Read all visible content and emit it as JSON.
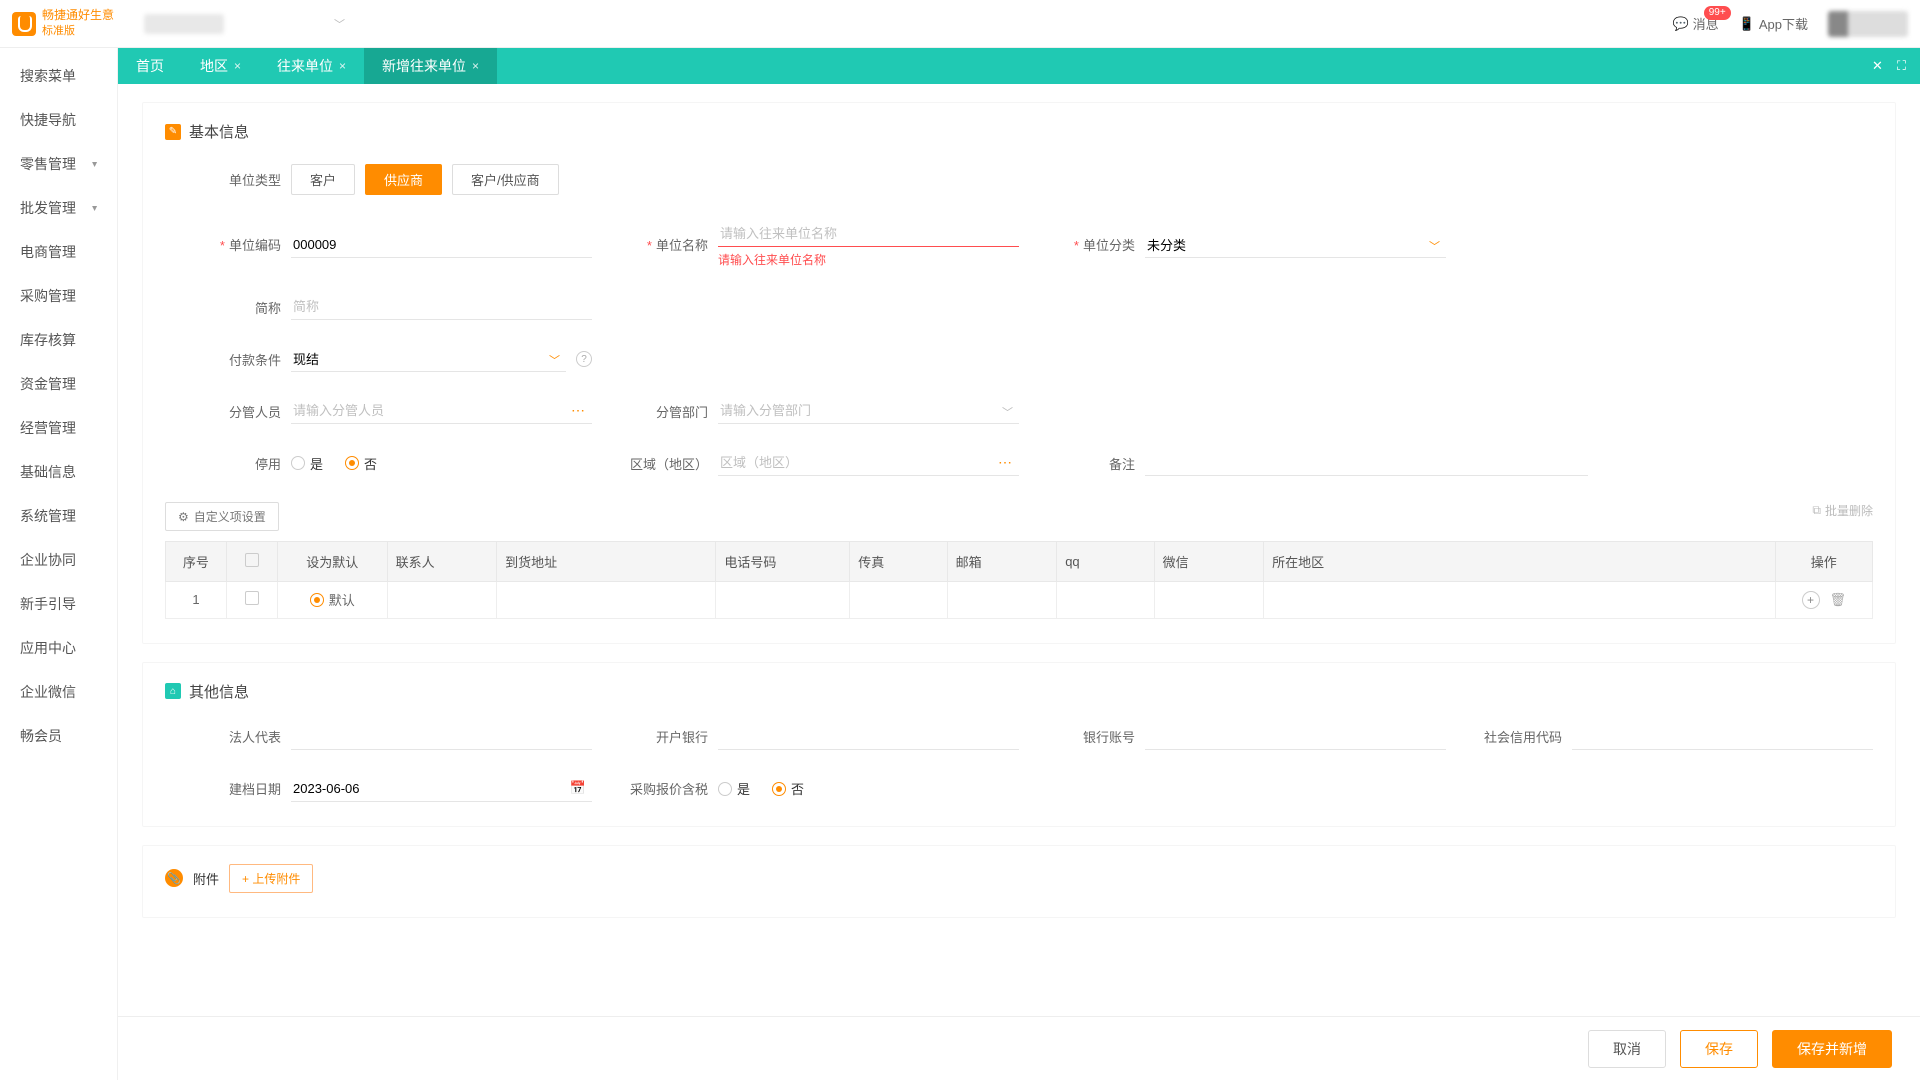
{
  "header": {
    "logo_text": "畅捷通好生意",
    "logo_sub": "标准版",
    "messages_label": "消息",
    "messages_badge": "99+",
    "app_download_label": "App下载"
  },
  "sidebar": {
    "items": [
      {
        "label": "搜索菜单",
        "caret": false
      },
      {
        "label": "快捷导航",
        "caret": false
      },
      {
        "label": "零售管理",
        "caret": true
      },
      {
        "label": "批发管理",
        "caret": true
      },
      {
        "label": "电商管理",
        "caret": false
      },
      {
        "label": "采购管理",
        "caret": false
      },
      {
        "label": "库存核算",
        "caret": false
      },
      {
        "label": "资金管理",
        "caret": false
      },
      {
        "label": "经营管理",
        "caret": false
      },
      {
        "label": "基础信息",
        "caret": false
      },
      {
        "label": "系统管理",
        "caret": false
      },
      {
        "label": "企业协同",
        "caret": false
      },
      {
        "label": "新手引导",
        "caret": false
      },
      {
        "label": "应用中心",
        "caret": false
      },
      {
        "label": "企业微信",
        "caret": false
      },
      {
        "label": "畅会员",
        "caret": false
      }
    ]
  },
  "tabs": [
    {
      "label": "首页",
      "closable": false,
      "active": false
    },
    {
      "label": "地区",
      "closable": true,
      "active": false
    },
    {
      "label": "往来单位",
      "closable": true,
      "active": false
    },
    {
      "label": "新增往来单位",
      "closable": true,
      "active": true
    }
  ],
  "section_basic": {
    "title": "基本信息",
    "unit_type_label": "单位类型",
    "unit_type_options": [
      "客户",
      "供应商",
      "客户/供应商"
    ],
    "unit_type_selected": 1,
    "unit_code_label": "单位编码",
    "unit_code_value": "000009",
    "unit_name_label": "单位名称",
    "unit_name_placeholder": "请输入往来单位名称",
    "unit_name_error": "请输入往来单位名称",
    "unit_category_label": "单位分类",
    "unit_category_value": "未分类",
    "abbr_label": "简称",
    "abbr_placeholder": "简称",
    "pay_terms_label": "付款条件",
    "pay_terms_value": "现结",
    "manager_label": "分管人员",
    "manager_placeholder": "请输入分管人员",
    "dept_label": "分管部门",
    "dept_placeholder": "请输入分管部门",
    "disabled_label": "停用",
    "disabled_yes": "是",
    "disabled_no": "否",
    "region_label": "区域（地区）",
    "region_placeholder": "区域（地区）",
    "remark_label": "备注",
    "custom_setting_label": "自定义项设置",
    "batch_delete_label": "批量删除"
  },
  "contact_table": {
    "headers": [
      "序号",
      "",
      "设为默认",
      "联系人",
      "到货地址",
      "电话号码",
      "传真",
      "邮箱",
      "qq",
      "微信",
      "所在地区",
      "操作"
    ],
    "row1_seq": "1",
    "row1_default": "默认"
  },
  "section_other": {
    "title": "其他信息",
    "legal_label": "法人代表",
    "bank_label": "开户银行",
    "account_label": "银行账号",
    "credit_label": "社会信用代码",
    "archive_date_label": "建档日期",
    "archive_date_value": "2023-06-06",
    "tax_label": "采购报价含税",
    "tax_yes": "是",
    "tax_no": "否"
  },
  "attach": {
    "title": "附件",
    "upload_label": "+ 上传附件"
  },
  "footer": {
    "cancel": "取消",
    "save": "保存",
    "save_new": "保存并新增"
  }
}
